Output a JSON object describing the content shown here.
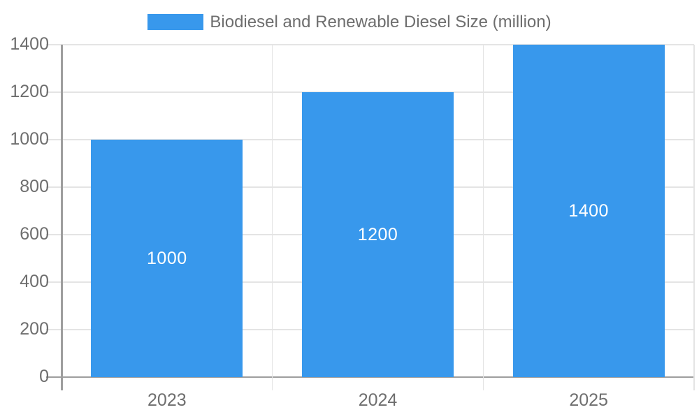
{
  "chart_data": {
    "type": "bar",
    "title": "Biodiesel and Renewable Diesel Size (million)",
    "categories": [
      "2023",
      "2024",
      "2025"
    ],
    "values": [
      1000,
      1200,
      1400
    ],
    "bar_labels": [
      "1000",
      "1200",
      "1400"
    ],
    "xlabel": "",
    "ylabel": "",
    "ylim": [
      0,
      1400
    ],
    "yticks": [
      0,
      200,
      400,
      600,
      800,
      1000,
      1200,
      1400
    ],
    "grid": true,
    "legend_position": "top",
    "colors": {
      "bar": "#3898EC",
      "grid": "#E4E4E4",
      "axis": "#9E9E9E",
      "tick_label": "#6E6E6E",
      "bar_label": "#FFFFFF",
      "background": "#FFFFFF"
    }
  }
}
